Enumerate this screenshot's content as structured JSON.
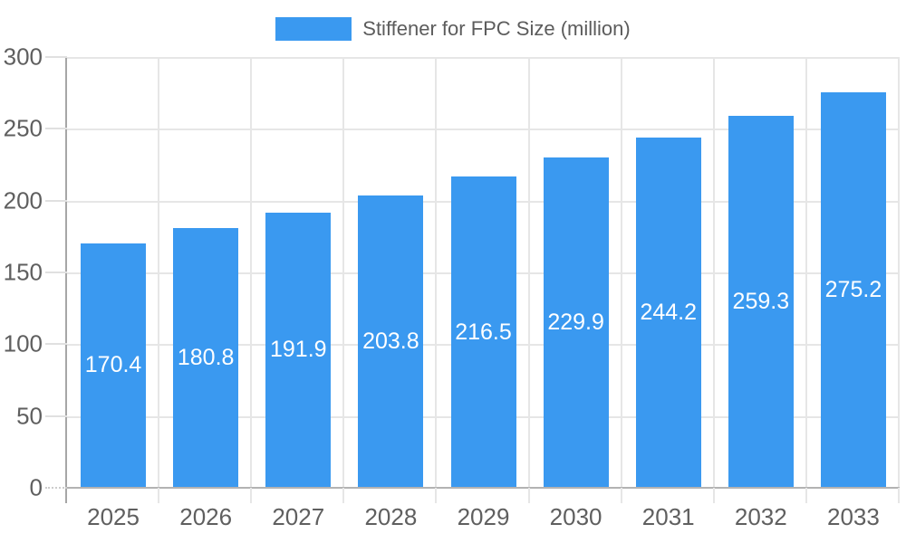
{
  "legend": {
    "label": "Stiffener for FPC Size (million)"
  },
  "chart_data": {
    "type": "bar",
    "title": "Stiffener for FPC Size (million)",
    "categories": [
      "2025",
      "2026",
      "2027",
      "2028",
      "2029",
      "2030",
      "2031",
      "2032",
      "2033"
    ],
    "values": [
      170.4,
      180.8,
      191.9,
      203.8,
      216.5,
      229.9,
      244.2,
      259.3,
      275.2
    ],
    "value_labels": [
      "170.4",
      "180.8",
      "191.9",
      "203.8",
      "216.5",
      "229.9",
      "244.2",
      "259.3",
      "275.2"
    ],
    "xlabel": "",
    "ylabel": "",
    "ylim": [
      0,
      300
    ],
    "yticks": [
      0,
      50,
      100,
      150,
      200,
      250,
      300
    ],
    "grid": true,
    "legend_position": "top",
    "colors": {
      "bar": "#3a99f0",
      "grid": "#e6e6e6",
      "axis_line": "#a6a6a6",
      "baseline": "#b3b3b3",
      "tick": "#e0e0e0",
      "tick_label": "#5f5f5f",
      "value_label": "#ffffff",
      "background": "#ffffff"
    }
  }
}
